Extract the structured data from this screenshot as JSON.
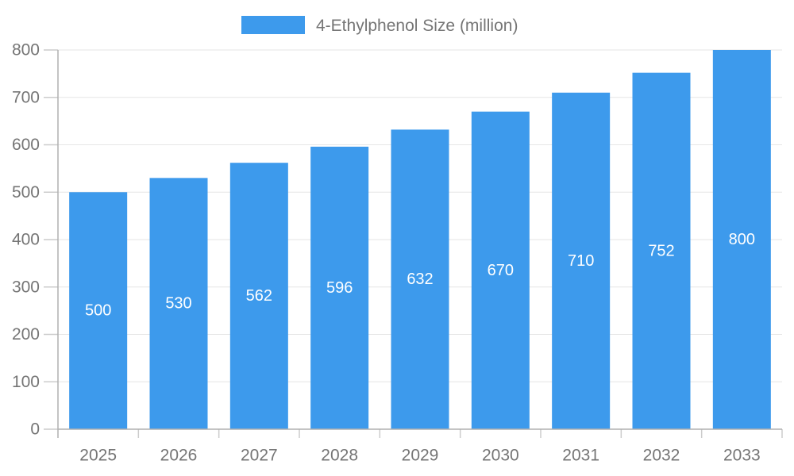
{
  "chart_data": {
    "type": "bar",
    "title": "",
    "legend_label": "4-Ethylphenol Size (million)",
    "series": [
      {
        "name": "4-Ethylphenol Size (million)",
        "values": [
          500,
          530,
          562,
          596,
          632,
          670,
          710,
          752,
          800
        ]
      }
    ],
    "categories": [
      "2025",
      "2026",
      "2027",
      "2028",
      "2029",
      "2030",
      "2031",
      "2032",
      "2033"
    ],
    "xlabel": "",
    "ylabel": "",
    "ylim": [
      0,
      800
    ],
    "ytick_step": 100,
    "ytick_labels": [
      "0",
      "100",
      "200",
      "300",
      "400",
      "500",
      "600",
      "700",
      "800"
    ],
    "grid": true,
    "legend_position": "top-center",
    "bar_color": "#3d9aec",
    "bar_label_color": "#ffffff",
    "axis_text_color": "#757575"
  }
}
